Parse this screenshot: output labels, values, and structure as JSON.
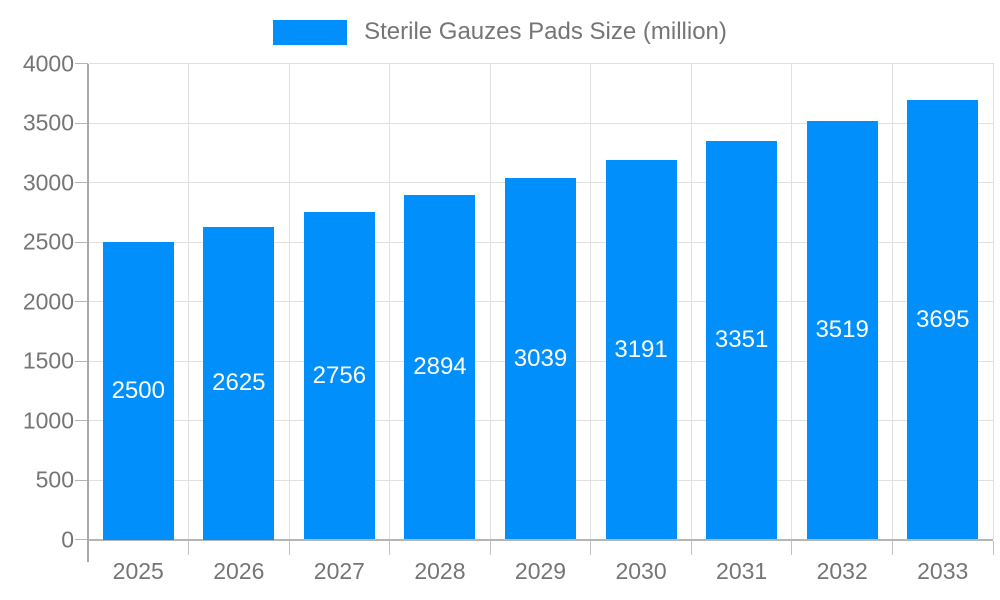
{
  "chart_data": {
    "type": "bar",
    "title": "Sterile Gauzes Pads Size (million)",
    "categories": [
      "2025",
      "2026",
      "2027",
      "2028",
      "2029",
      "2030",
      "2031",
      "2032",
      "2033"
    ],
    "series": [
      {
        "name": "Sterile Gauzes Pads Size (million)",
        "values": [
          2500,
          2625,
          2756,
          2894,
          3039,
          3191,
          3351,
          3519,
          3695
        ]
      }
    ],
    "xlabel": "",
    "ylabel": "",
    "ylim": [
      0,
      4000
    ],
    "y_tick_step": 500,
    "y_ticks": [
      "0",
      "500",
      "1000",
      "1500",
      "2000",
      "2500",
      "3000",
      "3500",
      "4000"
    ],
    "grid": true,
    "legend_position": "top"
  },
  "colors": {
    "bar": "#008FFB",
    "gridline": "#e0e0e0",
    "axis_line": "#a9a9a9",
    "axis_label": "#757575",
    "legend_label": "#757575",
    "value_label": "#ffffff",
    "background": "#ffffff"
  }
}
